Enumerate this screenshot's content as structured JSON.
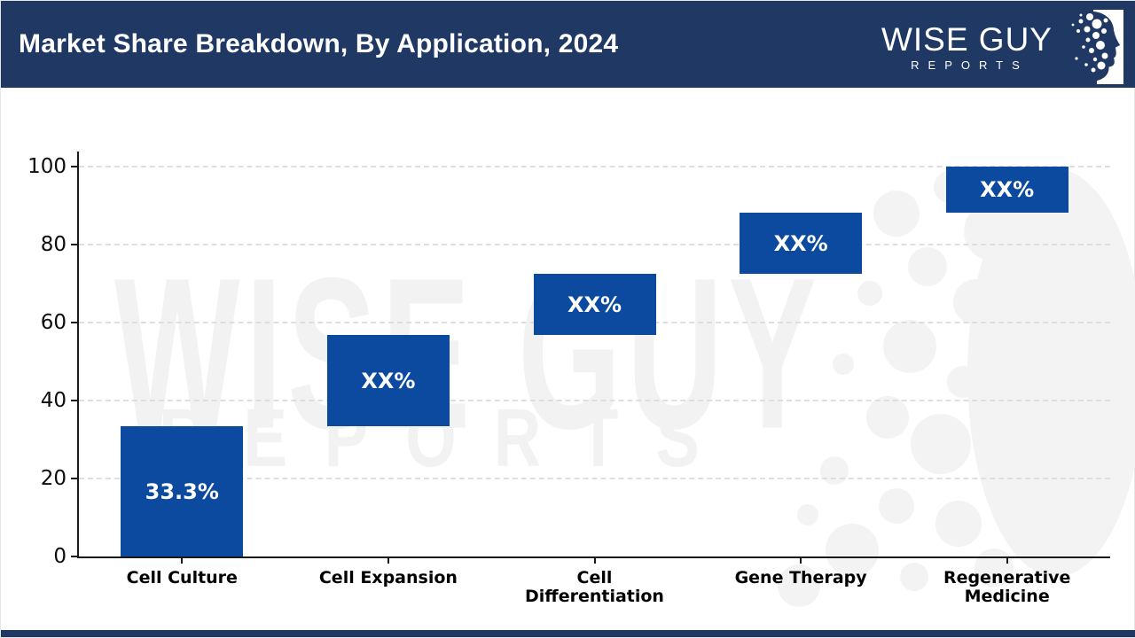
{
  "header": {
    "title": "Market Share Breakdown, By Application, 2024",
    "logo": {
      "line1": "WISE GUY",
      "line2": "REPORTS"
    }
  },
  "watermark": {
    "line1": "WISE GUY",
    "line2": "REPORTS"
  },
  "colors": {
    "header_navy": "#1f3864",
    "bar_blue": "#0b4a9f",
    "axis": "#1a1a1a",
    "grid": "#dedede",
    "watermark": "#f2f2f2",
    "bar_label_text": "#ffffff"
  },
  "chart_data": {
    "type": "bar",
    "subtype": "waterfall",
    "title": "Market Share Breakdown, By Application, 2024",
    "categories": [
      "Cell Culture",
      "Cell Expansion",
      "Cell\nDifferentiation",
      "Gene Therapy",
      "Regenerative\nMedicine"
    ],
    "segments": [
      {
        "category": "Cell Culture",
        "start": 0,
        "end": 33.3,
        "label": "33.3%"
      },
      {
        "category": "Cell Expansion",
        "start": 33.3,
        "end": 56.8,
        "label": "XX%"
      },
      {
        "category": "Cell Differentiation",
        "start": 56.8,
        "end": 72.4,
        "label": "XX%"
      },
      {
        "category": "Gene Therapy",
        "start": 72.4,
        "end": 88.2,
        "label": "XX%"
      },
      {
        "category": "Regenerative Medicine",
        "start": 88.2,
        "end": 100,
        "label": "XX%"
      }
    ],
    "yticks": [
      0,
      20,
      40,
      60,
      80,
      100
    ],
    "ylim": [
      0,
      100
    ],
    "xlabel": "",
    "ylabel": "",
    "grid": true,
    "legend": false
  }
}
